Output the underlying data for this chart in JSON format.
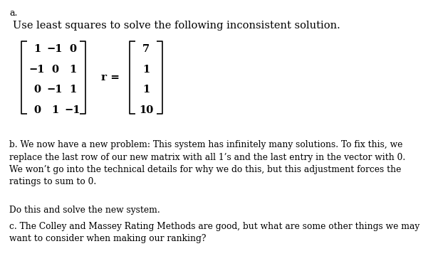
{
  "label_a": "a.",
  "title_text": "Use least squares to solve the following inconsistent solution.",
  "matrix_A": [
    [
      "1",
      "−1",
      "0"
    ],
    [
      "−1",
      "0",
      "1"
    ],
    [
      "0",
      "−1",
      "1"
    ],
    [
      "0",
      "1",
      "−1"
    ]
  ],
  "r_equals": "r =",
  "vector_b": [
    "7",
    "1",
    "1",
    "10"
  ],
  "text_b": "b. We now have a new problem: This system has infinitely many solutions. To fix this, we\nreplace the last row of our new matrix with all 1’s and the last entry in the vector with 0.\nWe won’t go into the technical details for why we do this, but this adjustment forces the\nratings to sum to 0.",
  "text_do": "Do this and solve the new system.",
  "text_c": "c. The Colley and Massey Rating Methods are good, but what are some other things we may\nwant to consider when making our ranking?",
  "bg_color": "#ffffff",
  "text_color": "#000000",
  "font_family": "DejaVu Serif",
  "figsize": [
    6.08,
    3.67
  ],
  "dpi": 100
}
